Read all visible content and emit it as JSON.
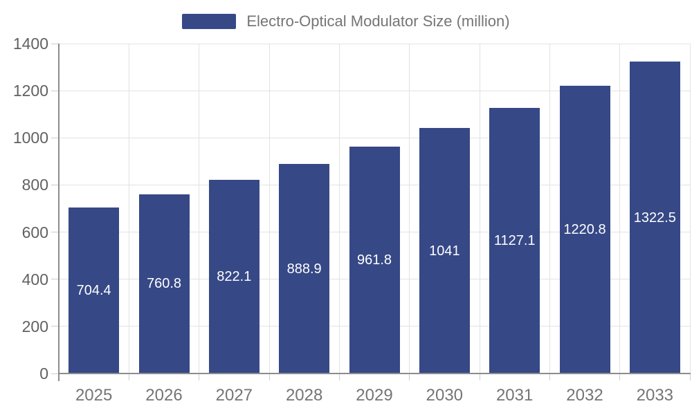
{
  "legend": {
    "label": "Electro-Optical Modulator Size (million)"
  },
  "colors": {
    "bar_fill": "#364886",
    "grid_line": "#e2e2e2",
    "axis_line": "#8c8c8c",
    "tick_mark": "#cccccc",
    "y_tick_label": "#616161",
    "x_tick_label": "#757575",
    "legend_text": "#757575",
    "value_label_text": "#ffffff",
    "background": "#ffffff"
  },
  "chart_data": {
    "type": "bar",
    "title": "Electro-Optical Modulator Size (million)",
    "categories": [
      "2025",
      "2026",
      "2027",
      "2028",
      "2029",
      "2030",
      "2031",
      "2032",
      "2033"
    ],
    "series": [
      {
        "name": "Electro-Optical Modulator Size (million)",
        "values": [
          704.4,
          760.8,
          822.1,
          888.9,
          961.8,
          1041,
          1127.1,
          1220.8,
          1322.5
        ],
        "value_labels": [
          "704.4",
          "760.8",
          "822.1",
          "888.9",
          "961.8",
          "1041",
          "1127.1",
          "1220.8",
          "1322.5"
        ],
        "color": "#364886"
      }
    ],
    "xlabel": "",
    "ylabel": "",
    "ylim": [
      0,
      1400
    ],
    "yticks": [
      0,
      200,
      400,
      600,
      800,
      1000,
      1200,
      1400
    ],
    "grid": true,
    "legend_position": "top-center",
    "value_label_position": "inside-center"
  }
}
